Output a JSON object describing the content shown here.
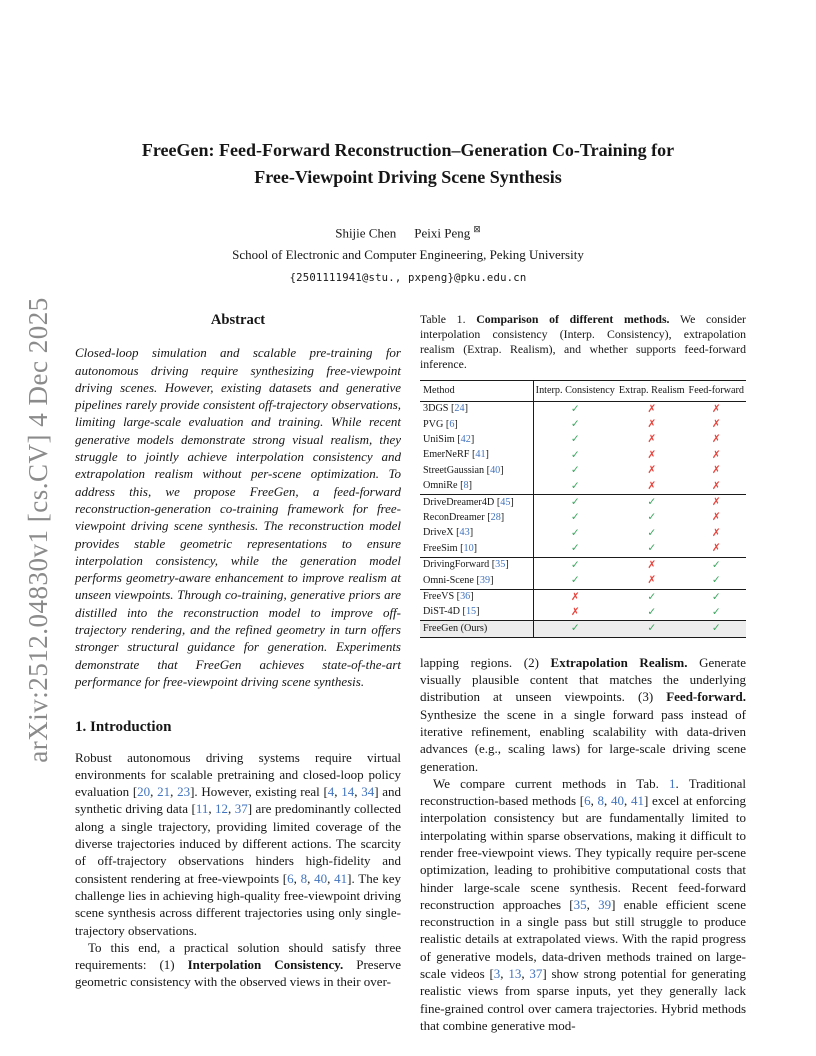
{
  "arxiv_watermark": "arXiv:2512.04830v1  [cs.CV]  4 Dec 2025",
  "title": {
    "line1": "FreeGen: Feed-Forward Reconstruction–Generation Co-Training for",
    "line2": "Free-Viewpoint Driving Scene Synthesis"
  },
  "authors": {
    "author1": "Shijie Chen",
    "author2": "Peixi Peng",
    "envelope_icon": "⊠",
    "affiliation": "School of Electronic and Computer Engineering, Peking University",
    "email": "{2501111941@stu., pxpeng}@pku.edu.cn"
  },
  "abstract": {
    "heading": "Abstract",
    "text": "Closed-loop simulation and scalable pre-training for autonomous driving require synthesizing free-viewpoint driving scenes. However, existing datasets and generative pipelines rarely provide consistent off-trajectory observations, limiting large-scale evaluation and training. While recent generative models demonstrate strong visual realism, they struggle to jointly achieve interpolation consistency and extrapolation realism without per-scene optimization. To address this, we propose FreeGen, a feed-forward reconstruction-generation co-training framework for free-viewpoint driving scene synthesis. The reconstruction model provides stable geometric representations to ensure interpolation consistency, while the generation model performs geometry-aware enhancement to improve realism at unseen viewpoints. Through co-training, generative priors are distilled into the reconstruction model to improve off-trajectory rendering, and the refined geometry in turn offers stronger structural guidance for generation. Experiments demonstrate that FreeGen achieves state-of-the-art performance for free-viewpoint driving scene synthesis."
  },
  "introduction": {
    "heading": "1. Introduction",
    "paragraphs": [
      {
        "indent": false,
        "text": "Robust autonomous driving systems require virtual environments for scalable pretraining and closed-loop policy evaluation [20, 21, 23]. However, existing real [4, 14, 34] and synthetic driving data [11, 12, 37] are predominantly collected along a single trajectory, providing limited coverage of the diverse trajectories induced by different actions. The scarcity of off-trajectory observations hinders high-fidelity and consistent rendering at free-viewpoints [6, 8, 40, 41]. The key challenge lies in achieving high-quality free-viewpoint driving scene synthesis across different trajectories using only single-trajectory observations."
      },
      {
        "indent": true,
        "text": "To this end, a practical solution should satisfy three requirements: (1) **Interpolation Consistency.** Preserve geometric consistency with the observed views in their over-"
      }
    ]
  },
  "table": {
    "caption": "Table 1. **Comparison of different methods.** We consider interpolation consistency (Interp. Consistency), extrapolation realism (Extrap. Realism), and whether supports feed-forward inference.",
    "headers": [
      "Method",
      "Interp. Consistency",
      "Extrap. Realism",
      "Feed-forward"
    ],
    "check_symbol": "✓",
    "cross_symbol": "✗",
    "groups": [
      {
        "highlight": false,
        "rows": [
          {
            "name": "3DGS",
            "cite": "24",
            "values": [
              true,
              false,
              false
            ]
          },
          {
            "name": "PVG",
            "cite": "6",
            "values": [
              true,
              false,
              false
            ]
          },
          {
            "name": "UniSim",
            "cite": "42",
            "values": [
              true,
              false,
              false
            ]
          },
          {
            "name": "EmerNeRF",
            "cite": "41",
            "values": [
              true,
              false,
              false
            ]
          },
          {
            "name": "StreetGaussian",
            "cite": "40",
            "values": [
              true,
              false,
              false
            ]
          },
          {
            "name": "OmniRe",
            "cite": "8",
            "values": [
              true,
              false,
              false
            ]
          }
        ]
      },
      {
        "highlight": false,
        "rows": [
          {
            "name": "DriveDreamer4D",
            "cite": "45",
            "values": [
              true,
              true,
              false
            ]
          },
          {
            "name": "ReconDreamer",
            "cite": "28",
            "values": [
              true,
              true,
              false
            ]
          },
          {
            "name": "DriveX",
            "cite": "43",
            "values": [
              true,
              true,
              false
            ]
          },
          {
            "name": "FreeSim",
            "cite": "10",
            "values": [
              true,
              true,
              false
            ]
          }
        ]
      },
      {
        "highlight": false,
        "rows": [
          {
            "name": "DrivingForward",
            "cite": "35",
            "values": [
              true,
              false,
              true
            ]
          },
          {
            "name": "Omni-Scene",
            "cite": "39",
            "values": [
              true,
              false,
              true
            ]
          }
        ]
      },
      {
        "highlight": false,
        "rows": [
          {
            "name": "FreeVS",
            "cite": "36",
            "values": [
              false,
              true,
              true
            ]
          },
          {
            "name": "DiST-4D",
            "cite": "15",
            "values": [
              false,
              true,
              true
            ]
          }
        ]
      },
      {
        "highlight": true,
        "rows": [
          {
            "name": "FreeGen (Ours)",
            "cite": null,
            "values": [
              true,
              true,
              true
            ]
          }
        ]
      }
    ]
  },
  "right_column": {
    "paragraphs": [
      {
        "indent": false,
        "text": "lapping regions. (2) **Extrapolation Realism.** Generate visually plausible content that matches the underlying distribution at unseen viewpoints. (3) **Feed-forward.** Synthesize the scene in a single forward pass instead of iterative refinement, enabling scalability with data-driven advances (e.g., scaling laws) for large-scale driving scene generation."
      },
      {
        "indent": true,
        "text": "We compare current methods in Tab. ~1~. Traditional reconstruction-based methods [6, 8, 40, 41] excel at enforcing interpolation consistency but are fundamentally limited to interpolating within sparse observations, making it difficult to render free-viewpoint views. They typically require per-scene optimization, leading to prohibitive computational costs that hinder large-scale scene synthesis. Recent feed-forward reconstruction approaches [35, 39] enable efficient scene reconstruction in a single pass but still struggle to produce realistic details at extrapolated views. With the rapid progress of generative models, data-driven methods trained on large-scale videos [3, 13, 37] show strong potential for generating realistic views from sparse inputs, yet they generally lack fine-grained control over camera trajectories. Hybrid methods that combine generative mod-"
      }
    ]
  },
  "colors": {
    "cite": "#4273bd",
    "check": "#3aa55d",
    "cross": "#e8433c",
    "watermark": "#8b8b8b",
    "highlight": "#ededed"
  }
}
